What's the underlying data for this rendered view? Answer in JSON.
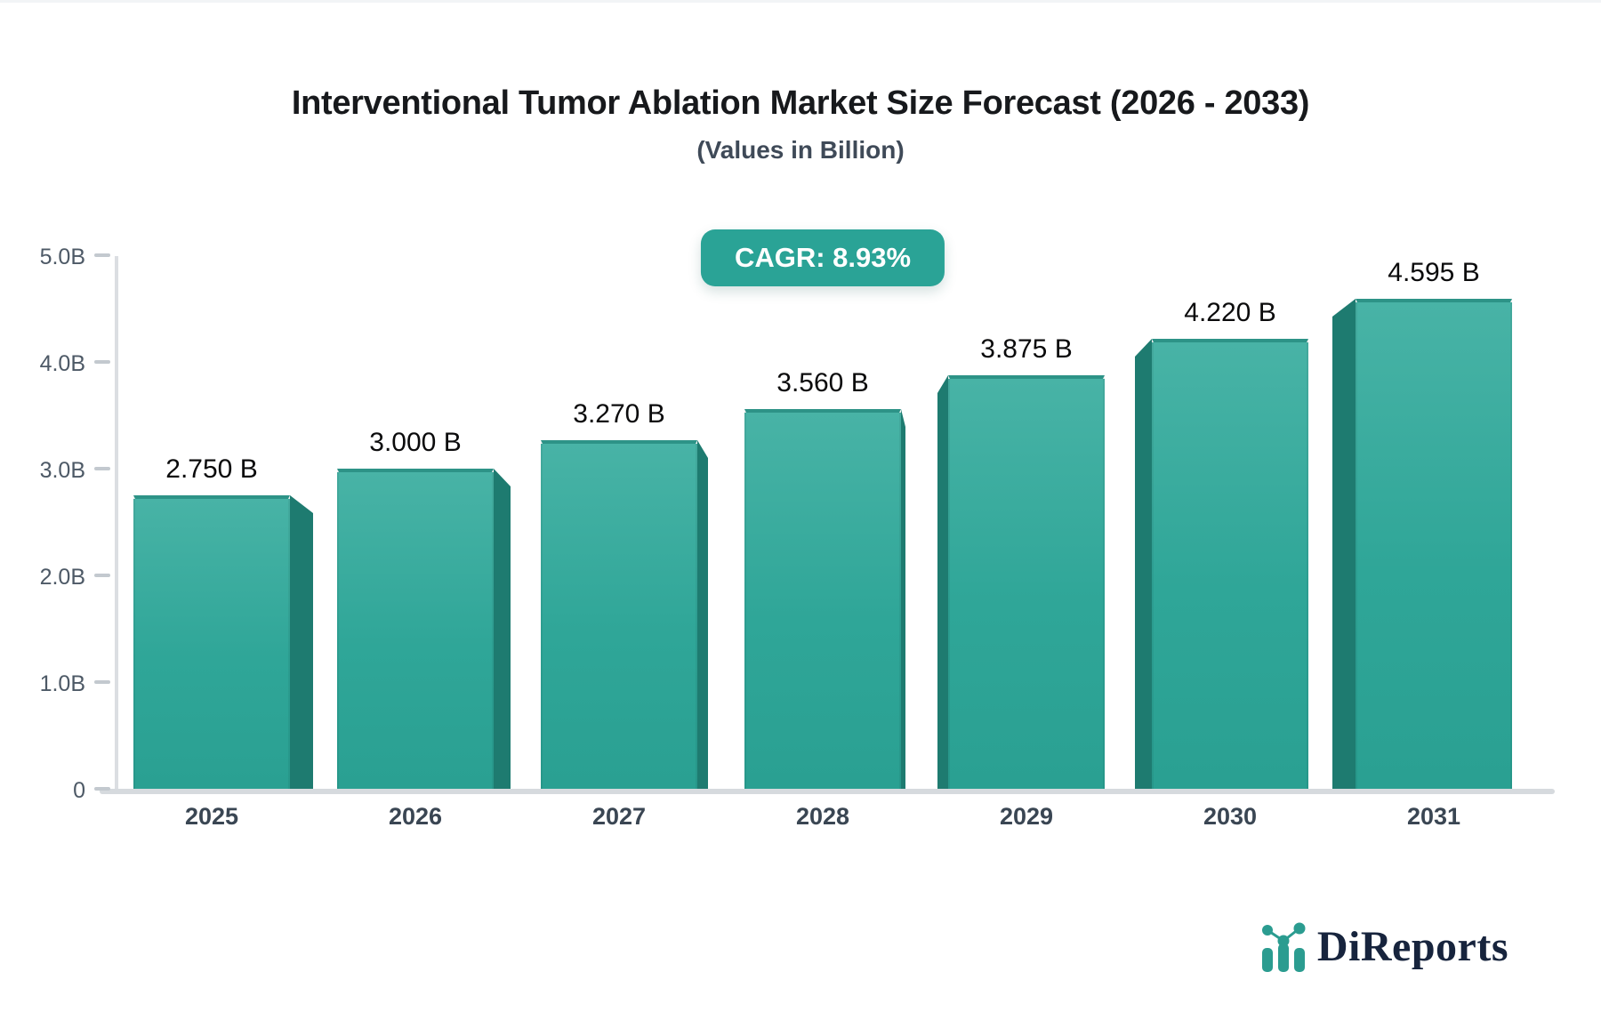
{
  "header": {
    "title": "Interventional Tumor Ablation Market Size Forecast (2026 - 2033)",
    "subtitle": "(Values in Billion)"
  },
  "badge": {
    "label": "CAGR: 8.93%",
    "bg_color": "#2aa396",
    "text_color": "#ffffff"
  },
  "chart_data": {
    "type": "bar",
    "title": "Interventional Tumor Ablation Market Size Forecast (2026 - 2033)",
    "subtitle": "(Values in Billion)",
    "unit": "Billion",
    "cagr": "8.93%",
    "categories": [
      "2025",
      "2026",
      "2027",
      "2028",
      "2029",
      "2030",
      "2031"
    ],
    "values": [
      2.75,
      3.0,
      3.27,
      3.56,
      3.875,
      4.22,
      4.595
    ],
    "bar_labels": [
      "2.750 B",
      "3.000 B",
      "3.270 B",
      "3.560 B",
      "3.875 B",
      "4.220 B",
      "4.595 B"
    ],
    "ylim": [
      0,
      5
    ],
    "y_ticks": [
      {
        "value": 0,
        "label": "0"
      },
      {
        "value": 1,
        "label": "1.0B"
      },
      {
        "value": 2,
        "label": "2.0B"
      },
      {
        "value": 3,
        "label": "3.0B"
      },
      {
        "value": 4,
        "label": "4.0B"
      },
      {
        "value": 5,
        "label": "5.0B"
      }
    ],
    "grid": false,
    "legend": false,
    "bar_face_color": "#33a89a",
    "bar_side_color": "#1e7b70",
    "axis_color": "#d6dade"
  },
  "logo": {
    "icon": "bar-chart-logo-icon",
    "text": "DiReports",
    "accent_color": "#2b9c90",
    "text_color": "#17243d"
  }
}
